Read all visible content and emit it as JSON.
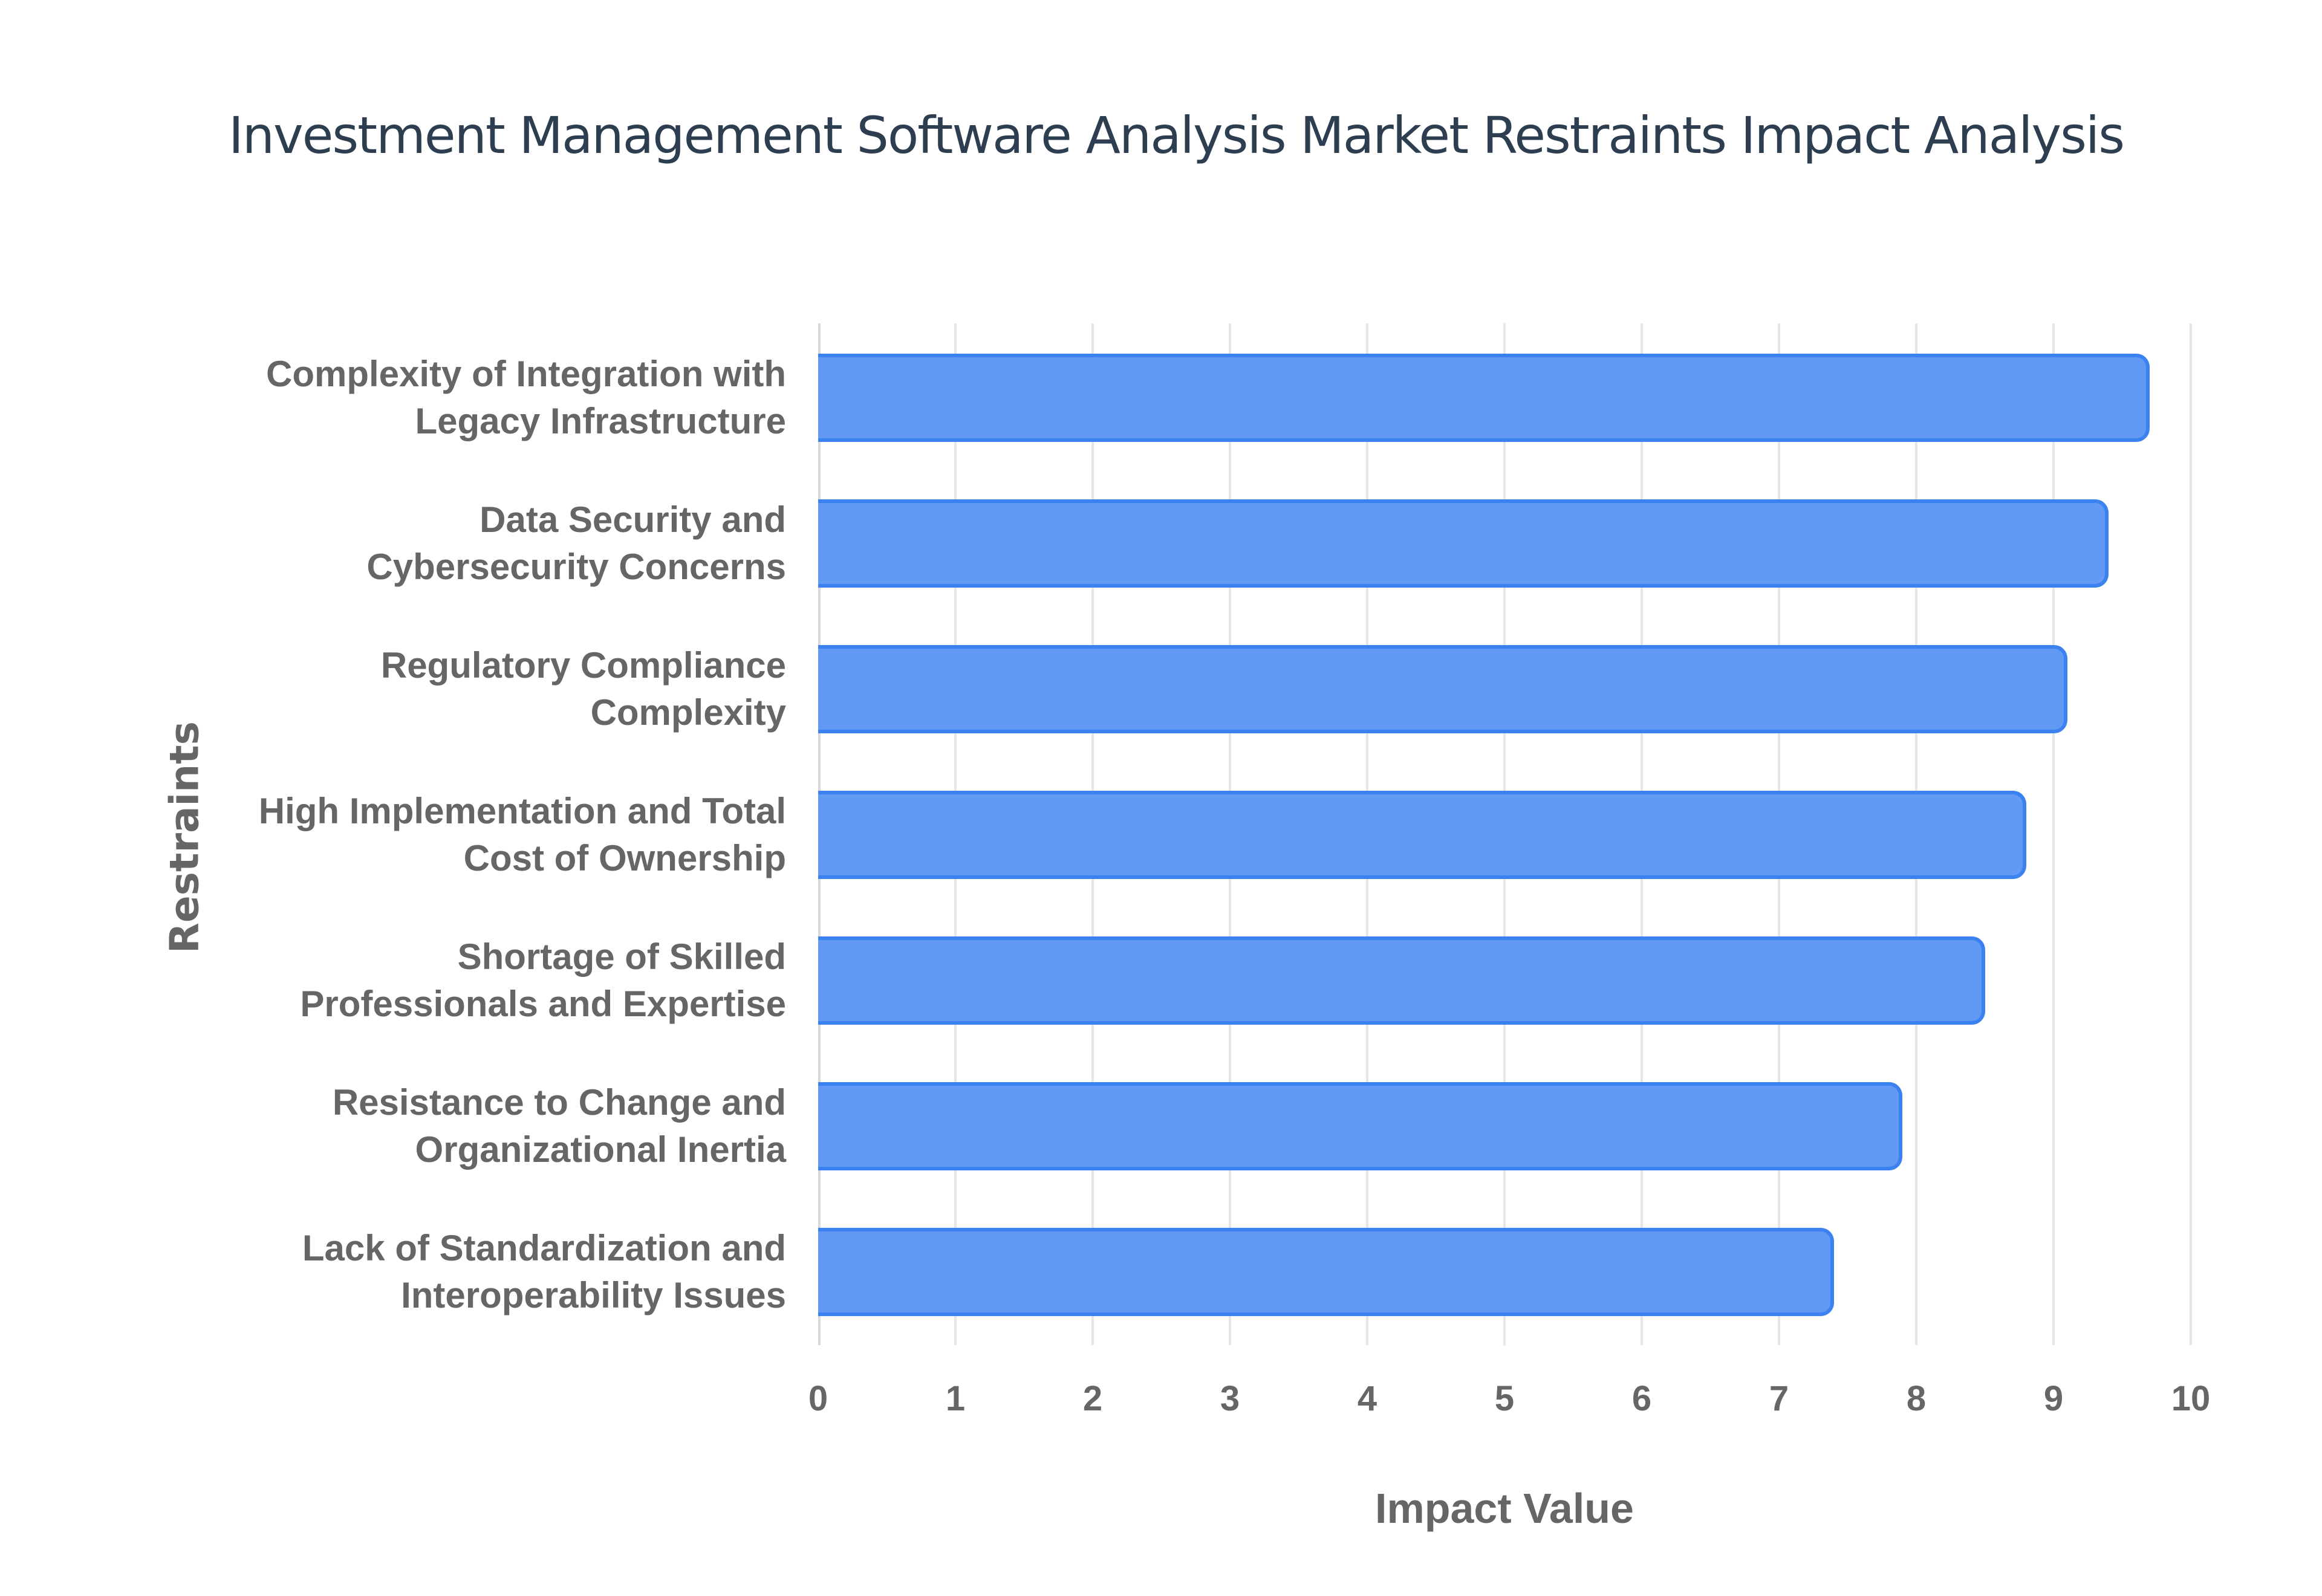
{
  "title": "Investment Management Software Analysis Market Restraints Impact Analysis",
  "colors": {
    "bar_fill": "#6199f5",
    "bar_border": "#3b82f0",
    "title": "#2c3e50",
    "label": "#666666",
    "grid": "#e6e6e6"
  },
  "chart_data": {
    "type": "bar",
    "orientation": "horizontal",
    "title": "Investment Management Software Analysis Market Restraints Impact Analysis",
    "xlabel": "Impact Value",
    "ylabel": "Restraints",
    "xlim": [
      0,
      10
    ],
    "xticks": [
      0,
      1,
      2,
      3,
      4,
      5,
      6,
      7,
      8,
      9,
      10
    ],
    "grid": true,
    "legend": null,
    "categories": [
      "Complexity of Integration with Legacy Infrastructure",
      "Data Security and Cybersecurity Concerns",
      "Regulatory Compliance Complexity",
      "High Implementation and Total Cost of Ownership",
      "Shortage of Skilled Professionals and Expertise",
      "Resistance to Change and Organizational Inertia",
      "Lack of Standardization and Interoperability Issues"
    ],
    "values": [
      9.7,
      9.4,
      9.1,
      8.8,
      8.5,
      7.9,
      7.4
    ]
  },
  "labels": [
    "Complexity of Integration with\nLegacy Infrastructure",
    "Data Security and\nCybersecurity Concerns",
    "Regulatory Compliance\nComplexity",
    "High Implementation and Total\nCost of Ownership",
    "Shortage of Skilled\nProfessionals and Expertise",
    "Resistance to Change and\nOrganizational Inertia",
    "Lack of Standardization and\nInteroperability Issues"
  ],
  "ticks": [
    "0",
    "1",
    "2",
    "3",
    "4",
    "5",
    "6",
    "7",
    "8",
    "9",
    "10"
  ]
}
